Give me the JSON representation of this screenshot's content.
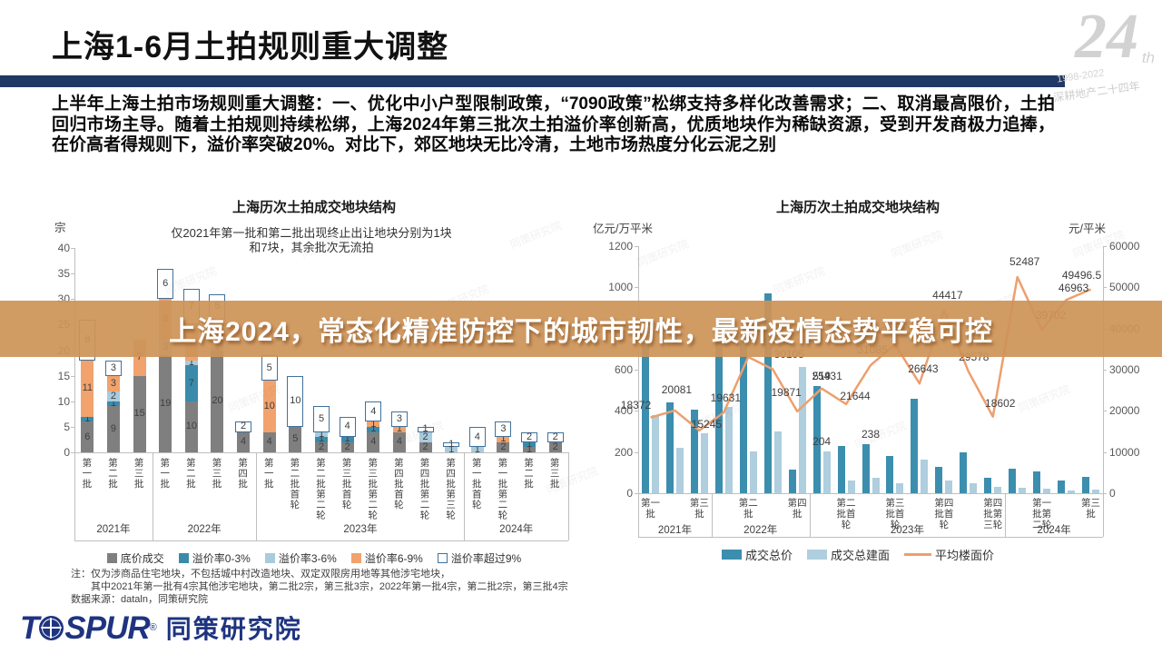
{
  "header": {
    "title": "上海1-6月土拍规则重大调整"
  },
  "badge": {
    "number": "24",
    "suffix": "th",
    "years": "1998-2022",
    "slogan": "深耕地产二十四年"
  },
  "intro": {
    "text": "上半年上海土拍市场规则重大调整：一、优化中小户型限制政策，“7090政策”松绑支持多样化改善需求；二、取消最高限价，土拍回归市场主导。随着土拍规则持续松绑，上海2024年第三批次土拍溢价率创新高，优质地块作为稀缺资源，受到开发商极力追捧，在价高者得规则下，溢价率突破20%。对比下，郊区地块无比冷清，土地市场热度分化云泥之别"
  },
  "overlay": {
    "text": "上海2024，常态化精准防控下的城市韧性，最新疫情态势平稳可控"
  },
  "watermark_text": "同策研究院",
  "footer": {
    "logo_t": "T",
    "logo_spur": "SPUR",
    "reg": "®",
    "org": "同策研究院"
  },
  "chart_data": [
    {
      "type": "bar",
      "variant": "stacked",
      "title": "上海历次土拍成交地块结构",
      "unit_label": "宗",
      "annotation": "仅2021年第一批和第二批出现终止出让地块分别为1块\n和7块，其余批次无流拍",
      "ylim": [
        0,
        40
      ],
      "yticks": [
        0,
        5,
        10,
        15,
        20,
        25,
        30,
        35,
        40
      ],
      "categories": [
        "第一批",
        "第二批",
        "第三批",
        "第一批",
        "第二批",
        "第三批",
        "第四批",
        "第一批",
        "第二批首轮",
        "第二批第二轮",
        "第三批首轮",
        "第三批第二轮",
        "第四批首轮",
        "第四批第二轮",
        "第四批第三轮",
        "第一批首轮",
        "第一批第二轮",
        "第二批",
        "第三批"
      ],
      "year_groups": [
        {
          "label": "2021年",
          "count": 3
        },
        {
          "label": "2022年",
          "count": 4
        },
        {
          "label": "2023年",
          "count": 8
        },
        {
          "label": "2024年",
          "count": 4
        }
      ],
      "series": [
        {
          "name": "底价成交",
          "color": "#7F7F7F",
          "values": [
            6,
            9,
            15,
            19,
            10,
            20,
            4,
            4,
            5,
            2,
            2,
            4,
            4,
            2,
            0,
            0,
            2,
            1,
            2
          ]
        },
        {
          "name": "溢价率0-3%",
          "color": "#3A8BAB",
          "values": [
            1,
            1,
            0,
            0,
            7,
            0,
            0,
            0,
            0,
            1,
            1,
            1,
            0,
            0,
            0,
            0,
            0,
            1,
            0
          ]
        },
        {
          "name": "溢价率3-6%",
          "color": "#A9CBDD",
          "values": [
            0,
            2,
            0,
            3,
            1,
            1,
            0,
            0,
            0,
            1,
            0,
            0,
            0,
            2,
            1,
            1,
            0,
            0,
            0
          ]
        },
        {
          "name": "溢价率6-9%",
          "color": "#F2A26C",
          "values": [
            11,
            3,
            7,
            8,
            7,
            5,
            0,
            10,
            0,
            0,
            0,
            1,
            1,
            0,
            0,
            0,
            1,
            0,
            0
          ]
        },
        {
          "name": "溢价率超过9%",
          "color": "#FFFFFF",
          "border": "#41719C",
          "values": [
            8,
            3,
            0,
            6,
            7,
            5,
            2,
            5,
            10,
            5,
            4,
            4,
            3,
            1,
            1,
            4,
            3,
            2,
            2
          ]
        }
      ],
      "notes": [
        "注：仅为涉商品住宅地块，不包括城中村改造地块、双定双限房用地等其他涉宅地块，",
        "其中2021年第一批有4宗其他涉宅地块，第二批2宗，第三批3宗，2022年第一批4宗，第二批2宗，第三批4宗",
        "数据来源：dataln，同策研究院"
      ]
    },
    {
      "type": "bar+line",
      "title": "上海历次土拍成交地块结构",
      "left_axis_label": "亿元/万平米",
      "right_axis_label": "元/平米",
      "left_ylim": [
        0,
        1200
      ],
      "left_yticks": [
        0,
        200,
        400,
        600,
        800,
        1000,
        1200
      ],
      "right_ylim": [
        0,
        60000
      ],
      "right_yticks": [
        0,
        10000,
        20000,
        30000,
        40000,
        50000,
        60000
      ],
      "categories": [
        "第一批",
        "第二批",
        "第三批",
        "第一批",
        "第二批",
        "第三批",
        "第四批",
        "第一批",
        "第二批首轮",
        "第二批第二轮",
        "第三批首轮",
        "第三批第二轮",
        "第四批首轮",
        "第四批第二轮",
        "第四批第三轮",
        "第一批首轮",
        "第一批第二轮",
        "第二批",
        "第三批"
      ],
      "label_every_other": true,
      "year_groups": [
        {
          "label": "2021年",
          "count": 3
        },
        {
          "label": "2022年",
          "count": 4
        },
        {
          "label": "2023年",
          "count": 8
        },
        {
          "label": "2024年",
          "count": 4
        }
      ],
      "bar_series": [
        {
          "name": "成交总价",
          "color": "#3C8EAE",
          "values": [
            721,
            443,
            404,
            820,
            790,
            970,
            115,
            519,
            228,
            238,
            180,
            460,
            130,
            200,
            75,
            120,
            105,
            60,
            78
          ]
        },
        {
          "name": "成交总建面",
          "color": "#AFCEDE",
          "values": [
            378,
            220,
            290,
            420,
            202,
            300,
            615,
            204,
            60,
            77,
            47,
            165,
            60,
            50,
            30,
            25,
            20,
            13,
            16
          ]
        }
      ],
      "line_series": {
        "name": "平均楼面价",
        "color": "#ED9F6E",
        "values": [
          18372,
          20081,
          15245,
          19631,
          33089,
          30105,
          19871,
          25431,
          21644,
          31085,
          36141,
          26643,
          44417,
          29578,
          18602,
          52487,
          39702,
          46963,
          49496.5
        ]
      },
      "bar_value_labels": [
        {
          "series": 0,
          "index": 7,
          "text": "519"
        },
        {
          "series": 1,
          "index": 7,
          "text": "204"
        },
        {
          "series": 0,
          "index": 9,
          "text": "238"
        }
      ]
    }
  ]
}
